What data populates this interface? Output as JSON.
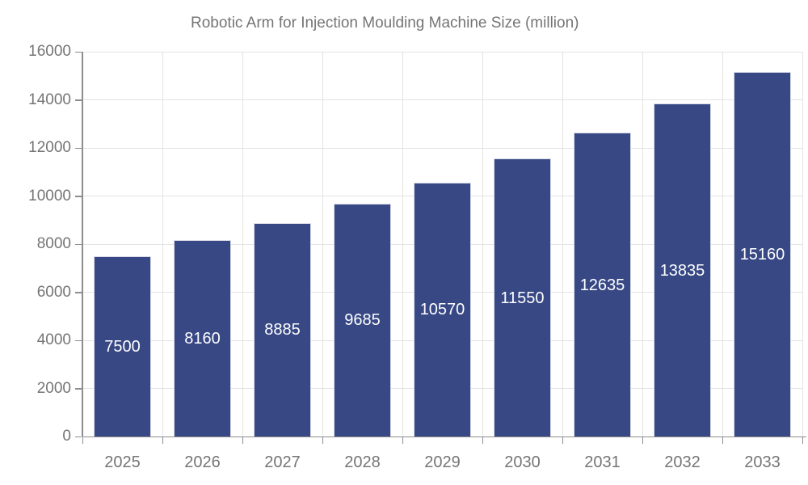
{
  "legend": {
    "label": "Robotic Arm for Injection Moulding Machine Size (million)"
  },
  "chart_data": {
    "type": "bar",
    "title": "",
    "legend_entries": [
      "Robotic Arm for Injection Moulding Machine Size (million)"
    ],
    "legend_position": "top-left",
    "categories": [
      "2025",
      "2026",
      "2027",
      "2028",
      "2029",
      "2030",
      "2031",
      "2032",
      "2033"
    ],
    "values": [
      7500,
      8160,
      8885,
      9685,
      10570,
      11550,
      12635,
      13835,
      15160
    ],
    "value_labels": [
      "7500",
      "8160",
      "8885",
      "9685",
      "10570",
      "11550",
      "12635",
      "13835",
      "15160"
    ],
    "xlabel": "",
    "ylabel": "",
    "ylim": [
      0,
      16000
    ],
    "yticks": [
      0,
      2000,
      4000,
      6000,
      8000,
      10000,
      12000,
      14000,
      16000
    ],
    "grid": true,
    "colors": {
      "bar_fill": "#374885",
      "bar_border": "#d9dbe8",
      "grid_line": "#e3e3e3",
      "axis_line": "#8d8d8d",
      "tick_label": "#757575",
      "legend_text": "#757575",
      "value_label": "#ffffff",
      "background": "#ffffff"
    }
  }
}
